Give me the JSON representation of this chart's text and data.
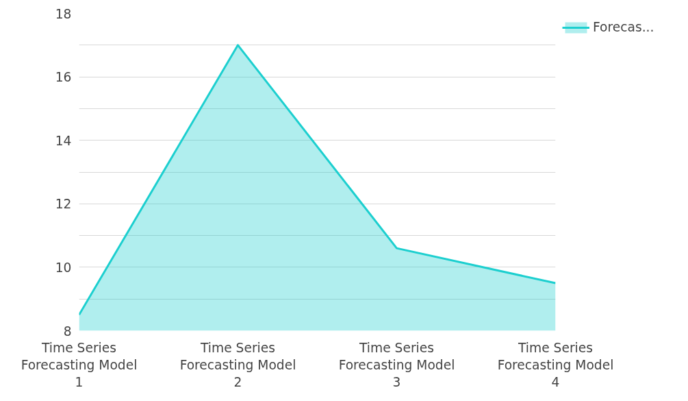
{
  "chart_data": {
    "type": "area",
    "categories": [
      "Time Series\nForecasting Model\n1",
      "Time Series\nForecasting Model\n2",
      "Time Series\nForecasting Model\n3",
      "Time Series\nForecasting Model\n4"
    ],
    "series": [
      {
        "name": "Forecas...",
        "color": "#1ccfcf",
        "values": [
          8.5,
          17,
          10.6,
          9.5
        ]
      }
    ],
    "ylim": [
      8,
      18
    ],
    "yticks": [
      8,
      {
        "value": 9,
        "label": null
      },
      10,
      {
        "value": 11,
        "label": null
      },
      12,
      {
        "value": 13,
        "label": null
      },
      14,
      {
        "value": 15,
        "label": null
      },
      16,
      {
        "value": 17,
        "label": null
      },
      18
    ],
    "grid": "y",
    "legend": "top right"
  }
}
